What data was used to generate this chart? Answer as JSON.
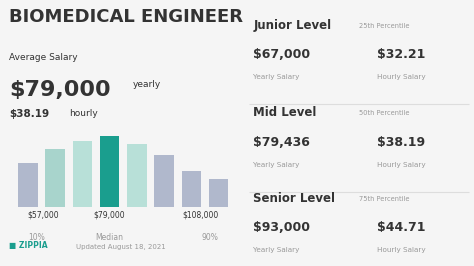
{
  "title": "BIOMEDICAL ENGINEER",
  "avg_salary_label": "Average Salary",
  "avg_yearly": "$79,000",
  "avg_yearly_label": "yearly",
  "avg_hourly": "$38.19",
  "avg_hourly_label": "hourly",
  "bar_values": [
    0.55,
    0.72,
    0.82,
    0.88,
    0.78,
    0.65,
    0.45,
    0.35
  ],
  "bar_colors": [
    "#b0b8cc",
    "#a8d4cc",
    "#b8e0d8",
    "#1a9e8e",
    "#b8e0d8",
    "#b0b8cc",
    "#b0b8cc",
    "#b0b8cc"
  ],
  "footer_date": "Updated August 18, 2021",
  "right_sections": [
    {
      "level": "Junior Level",
      "percentile": "25th Percentile",
      "yearly": "$67,000",
      "yearly_label": "Yearly Salary",
      "hourly": "$32.21",
      "hourly_label": "Hourly Salary"
    },
    {
      "level": "Mid Level",
      "percentile": "50th Percentile",
      "yearly": "$79,436",
      "yearly_label": "Yearly Salary",
      "hourly": "$38.19",
      "hourly_label": "Hourly Salary"
    },
    {
      "level": "Senior Level",
      "percentile": "75th Percentile",
      "yearly": "$93,000",
      "yearly_label": "Yearly Salary",
      "hourly": "$44.71",
      "hourly_label": "Hourly Salary"
    }
  ],
  "bg_color": "#f5f5f5",
  "title_fontsize": 13,
  "label_fontsize": 6.5,
  "teal_dark": "#1a9e8e",
  "divider_color": "#dddddd",
  "text_dark": "#333333",
  "text_gray": "#999999",
  "section_tops": [
    0.93,
    0.6,
    0.28
  ]
}
